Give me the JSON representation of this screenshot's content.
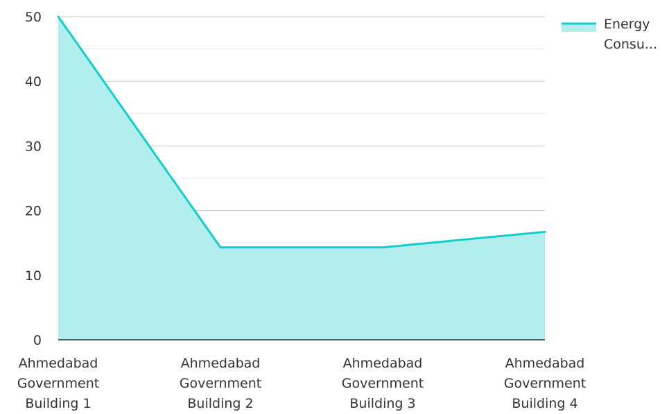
{
  "chart_data": {
    "type": "area",
    "title": "",
    "xlabel": "",
    "ylabel": "",
    "categories": [
      [
        "Ahmedabad",
        "Government",
        "Building 1"
      ],
      [
        "Ahmedabad",
        "Government",
        "Building 2"
      ],
      [
        "Ahmedabad",
        "Government",
        "Building 3"
      ],
      [
        "Ahmedabad",
        "Government",
        "Building 4"
      ]
    ],
    "series": [
      {
        "name": "Energy Consu...",
        "legend_lines": [
          "Energy",
          "Consu..."
        ],
        "values": [
          50,
          14.3,
          14.3,
          16.7
        ],
        "line_color": "#11cdcd",
        "fill_color": "#b2eeee"
      }
    ],
    "ylim": [
      0,
      50
    ],
    "yticks": [
      0,
      10,
      20,
      30,
      40,
      50
    ],
    "grid": true,
    "legend_position": "top-right"
  }
}
